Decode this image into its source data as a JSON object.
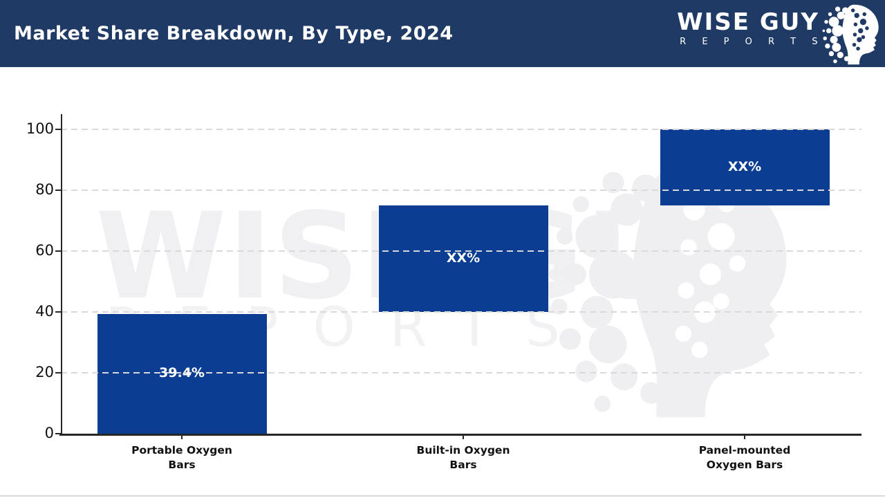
{
  "header": {
    "title": "Market Share Breakdown, By Type, 2024",
    "brand": {
      "line1": "WISE GUY",
      "line2": "R E P O R T S"
    }
  },
  "watermark": {
    "line1": "WISE GUY",
    "line2": "REPORTS"
  },
  "chart_data": {
    "type": "bar",
    "variant": "floating-segment-bars",
    "title": "Market Share Breakdown, By Type, 2024",
    "categories": [
      "Portable Oxygen Bars",
      "Built-in Oxygen Bars",
      "Panel-mounted Oxygen Bars"
    ],
    "bars": [
      {
        "category": "Portable Oxygen Bars",
        "label_lines": [
          "Portable Oxygen",
          "Bars"
        ],
        "start": 0,
        "end": 39.4,
        "value_label": "39.4%"
      },
      {
        "category": "Built-in Oxygen Bars",
        "label_lines": [
          "Built-in Oxygen",
          "Bars"
        ],
        "start": 40,
        "end": 75,
        "value_label": "XX%"
      },
      {
        "category": "Panel-mounted Oxygen Bars",
        "label_lines": [
          "Panel-mounted",
          "Oxygen Bars"
        ],
        "start": 75,
        "end": 100,
        "value_label": "XX%"
      }
    ],
    "y_ticks": [
      0,
      20,
      40,
      60,
      80,
      100
    ],
    "ylim": [
      0,
      105
    ],
    "xlabel": "",
    "ylabel": "",
    "grid": "dashed horizontal, drawn over bars",
    "legend": "none",
    "colors": {
      "header_bg": "#203a66",
      "bar": "#0b3d92",
      "grid": "#d9d9d9",
      "axis": "#262626",
      "tick_label": "#111111",
      "value_label": "#ffffff",
      "watermark": "#f0f0f2"
    }
  }
}
